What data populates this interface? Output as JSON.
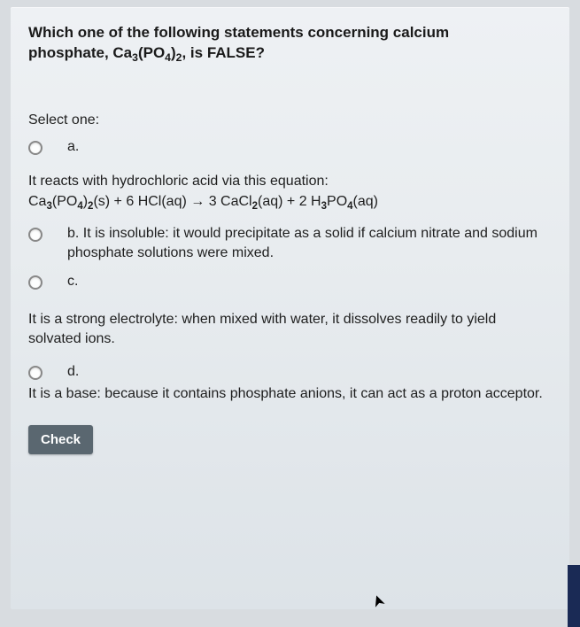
{
  "question": {
    "line1_pre": "Which one of the following statements concerning calcium",
    "line2_pre": "phosphate, Ca",
    "sub_3": "3",
    "po": "(PO",
    "sub_4": "4",
    "paren": ")",
    "sub_2": "2",
    "after": ", is FALSE?"
  },
  "select_label": "Select one:",
  "options": {
    "a": {
      "letter": "a.",
      "body_line1": "It reacts with hydrochloric acid via this equation:",
      "eq_pre": "Ca",
      "eq_s3": "3",
      "eq_po": "(PO",
      "eq_s4": "4",
      "eq_paren": ")",
      "eq_s2": "2",
      "eq_mid1": "(s) + 6 HCl(aq) → 3 CaCl",
      "eq_s2b": "2",
      "eq_mid2": "(aq) + 2 H",
      "eq_s3b": "3",
      "eq_mid3": "PO",
      "eq_s4b": "4",
      "eq_end": "(aq)"
    },
    "b": {
      "text": "b. It is insoluble: it would precipitate as a solid if calcium nitrate and sodium phosphate solutions were mixed."
    },
    "c": {
      "letter": "c.",
      "body": "It is a strong electrolyte: when mixed with water, it dissolves readily to yield solvated ions."
    },
    "d": {
      "letter": "d.",
      "body": "It is a base: because it contains phosphate anions, it can act as a proton acceptor."
    }
  },
  "check_label": "Check",
  "colors": {
    "panel_bg_top": "#eef1f4",
    "panel_bg_bottom": "#dde3e8",
    "text": "#1a1a1a",
    "button_bg": "#5a6770",
    "button_text": "#ffffff",
    "radio_border": "#888888"
  }
}
